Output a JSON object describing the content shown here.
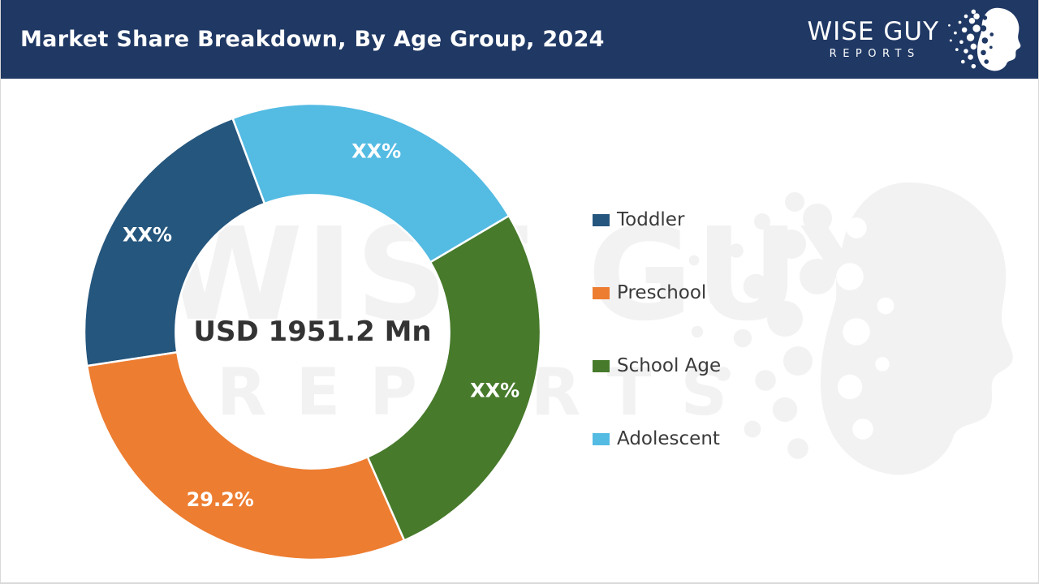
{
  "header": {
    "title": "Market Share Breakdown, By Age Group, 2024",
    "logo_line1": "WISE GUY",
    "logo_line2": "REPORTS"
  },
  "watermark": {
    "line1": "WISE GUY",
    "line2": "REPORTS"
  },
  "chart_data": {
    "type": "pie",
    "subtype": "donut",
    "title": "Market Share Breakdown, By Age Group, 2024",
    "center_label": "USD 1951.2 Mn",
    "categories": [
      "Toddler",
      "Preschool",
      "School Age",
      "Adolescent"
    ],
    "values": [
      21.7,
      29.2,
      26.9,
      22.2
    ],
    "slice_labels": [
      "XX%",
      "29.2%",
      "XX%",
      "XX%"
    ],
    "colors": [
      "#25567D",
      "#ED7D31",
      "#477A2B",
      "#54BBE3"
    ],
    "start_angle_deg": 110.5,
    "direction": "counterclockwise",
    "donut_hole_ratio": 0.6,
    "legend_position": "right"
  },
  "legend": {
    "items": [
      {
        "label": "Toddler",
        "color": "#25567D"
      },
      {
        "label": "Preschool",
        "color": "#ED7D31"
      },
      {
        "label": "School Age",
        "color": "#477A2B"
      },
      {
        "label": "Adolescent",
        "color": "#54BBE3"
      }
    ]
  },
  "colors": {
    "header_bg": "#1F3864",
    "center_text": "#333333",
    "legend_text": "#3A3A3A",
    "watermark": "#F2F2F2",
    "slice_label_text": "#FFFFFF"
  }
}
